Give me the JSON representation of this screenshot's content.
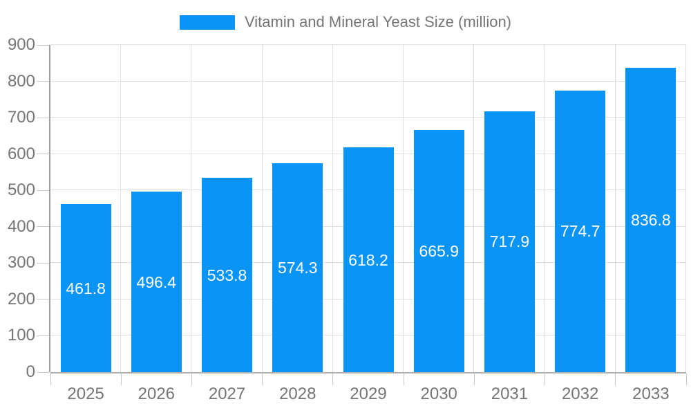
{
  "legend": {
    "label": "Vitamin and Mineral Yeast Size (million)"
  },
  "colors": {
    "bar": "#0a94f6",
    "bar_label": "#ffffff",
    "legend_text": "#757575",
    "axis_label": "#757575",
    "grid_line": "#e0e0e0",
    "tick_line": "#c9c9c9",
    "y_axis_line": "#9e9e9e",
    "x_axis_line": "#b1b1b1",
    "background": "#ffffff"
  },
  "chart_data": {
    "type": "bar",
    "title": "Vitamin and Mineral Yeast Size (million)",
    "series_name": "Vitamin and Mineral Yeast Size (million)",
    "categories": [
      "2025",
      "2026",
      "2027",
      "2028",
      "2029",
      "2030",
      "2031",
      "2032",
      "2033"
    ],
    "values": [
      461.8,
      496.4,
      533.8,
      574.3,
      618.2,
      665.9,
      717.9,
      774.7,
      836.8
    ],
    "xlabel": "",
    "ylabel": "",
    "ylim": [
      0,
      900
    ],
    "ytick_step": 100,
    "yticks": [
      0,
      100,
      200,
      300,
      400,
      500,
      600,
      700,
      800,
      900
    ],
    "grid": true,
    "legend_position": "top",
    "bar_label_position": "inside-center"
  }
}
